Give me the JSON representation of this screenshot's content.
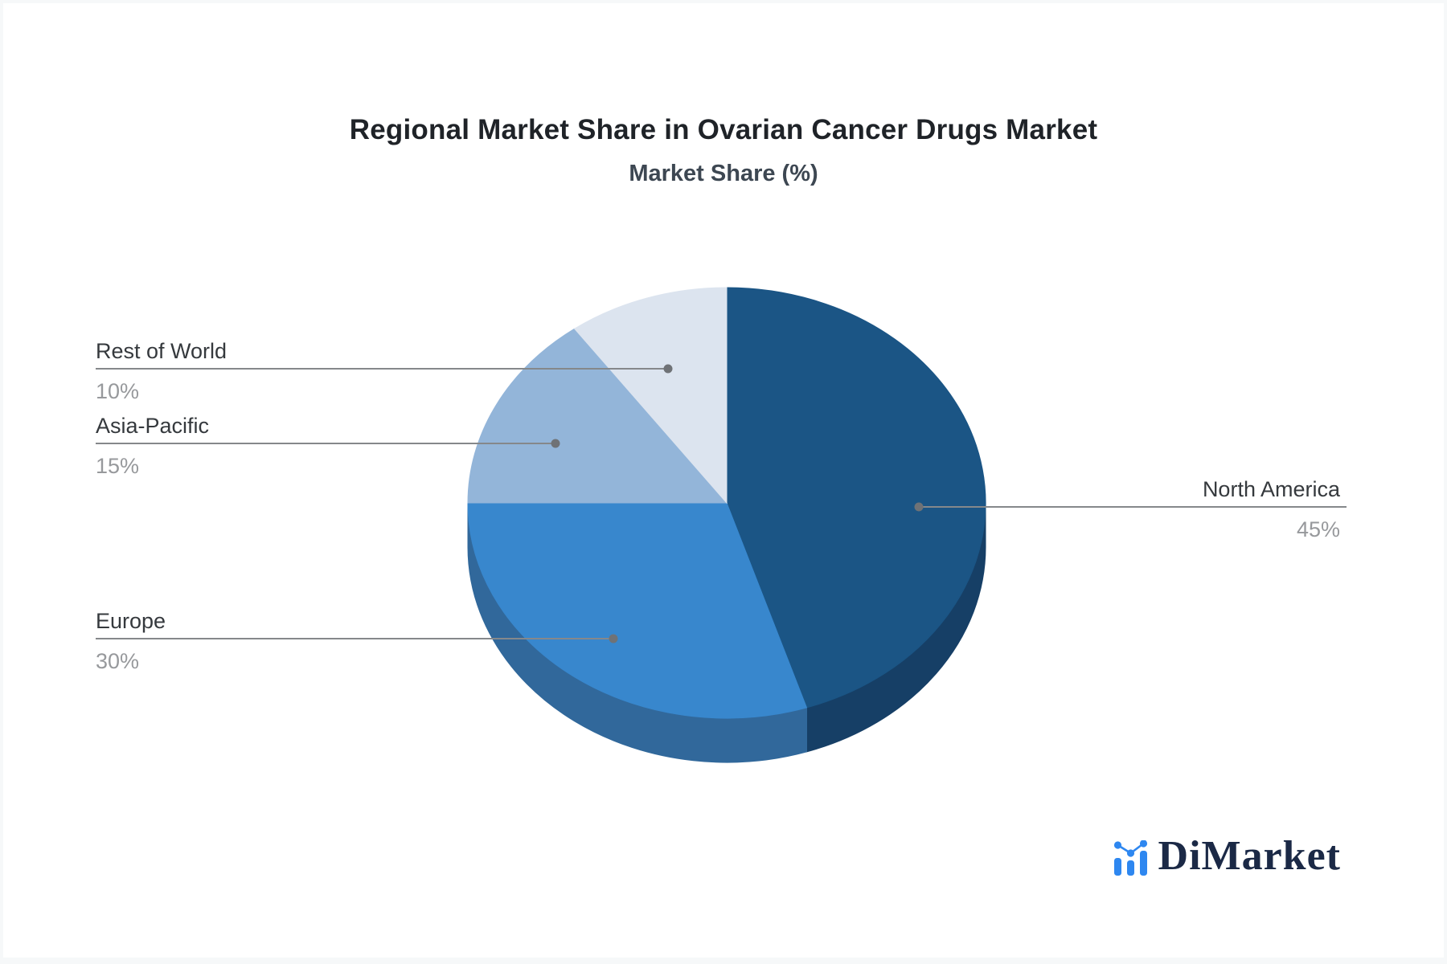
{
  "chart_data": {
    "type": "pie",
    "title": "Regional Market Share in Ovarian Cancer Drugs Market",
    "subtitle": "Market Share (%)",
    "unit": "%",
    "labels": [
      "North America",
      "Europe",
      "Asia-Pacific",
      "Rest of World"
    ],
    "values": [
      45,
      30,
      15,
      10
    ],
    "colors": [
      "#1b5585",
      "#3887cd",
      "#93b5d9",
      "#dce4ef"
    ],
    "side_colors": [
      "#163f66",
      "#31689b",
      null,
      null
    ],
    "start_angle_deg": 0,
    "clockwise": true,
    "effect": "3d-depth",
    "legend_position": "none",
    "annotation_style": "leader-line callouts"
  },
  "callouts": [
    {
      "label": "North America",
      "value_text": "45%",
      "side": "right"
    },
    {
      "label": "Europe",
      "value_text": "30%",
      "side": "left"
    },
    {
      "label": "Asia-Pacific",
      "value_text": "15%",
      "side": "left"
    },
    {
      "label": "Rest of World",
      "value_text": "10%",
      "side": "left"
    }
  ],
  "footer": {
    "brand": "DiMarket"
  },
  "colors": {
    "leader_line": "#85888b",
    "leader_dot": "#6f7276",
    "title_text": "#1f2328",
    "subtitle_text": "#3d4752",
    "label_text": "#35393d",
    "value_text": "#97999c",
    "logo_accent_blue": "#2e87f0",
    "logo_navy": "#1b2946",
    "background": "#ffffff"
  }
}
